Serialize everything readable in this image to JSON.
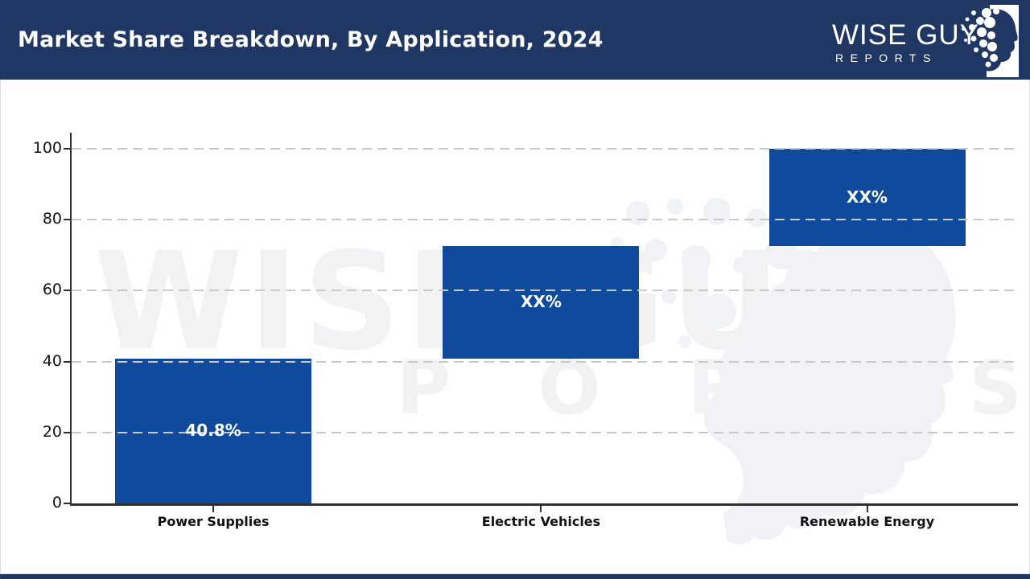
{
  "header": {
    "title": "Market Share Breakdown, By Application, 2024",
    "logo": {
      "line1": "WISE GUY",
      "line2": "REPORTS"
    }
  },
  "watermark": {
    "line1": "WISE GUY",
    "line2": "R E P O R T S"
  },
  "colors": {
    "header_bg": "#203764",
    "footer_bg": "#203764",
    "bar": "#0f4a9d",
    "grid": "#c9c9c9",
    "axis": "#2f2f2f",
    "watermark": "#f2f2f4"
  },
  "chart_data": {
    "type": "bar",
    "subtype": "waterfall",
    "title": "Market Share Breakdown, By Application, 2024",
    "categories": [
      "Power Supplies",
      "Electric Vehicles",
      "Renewable Energy"
    ],
    "segments": [
      {
        "label": "Power Supplies",
        "start": 0,
        "end": 40.8,
        "display": "40.8%"
      },
      {
        "label": "Electric Vehicles",
        "start": 40.8,
        "end": 72.5,
        "display": "XX%"
      },
      {
        "label": "Renewable Energy",
        "start": 72.5,
        "end": 100,
        "display": "XX%"
      }
    ],
    "yticks": [
      0,
      20,
      40,
      60,
      80,
      100
    ],
    "ylim": [
      0,
      100
    ],
    "xlabel": "",
    "ylabel": "",
    "grid": "horizontal dashed",
    "legend": "none"
  }
}
